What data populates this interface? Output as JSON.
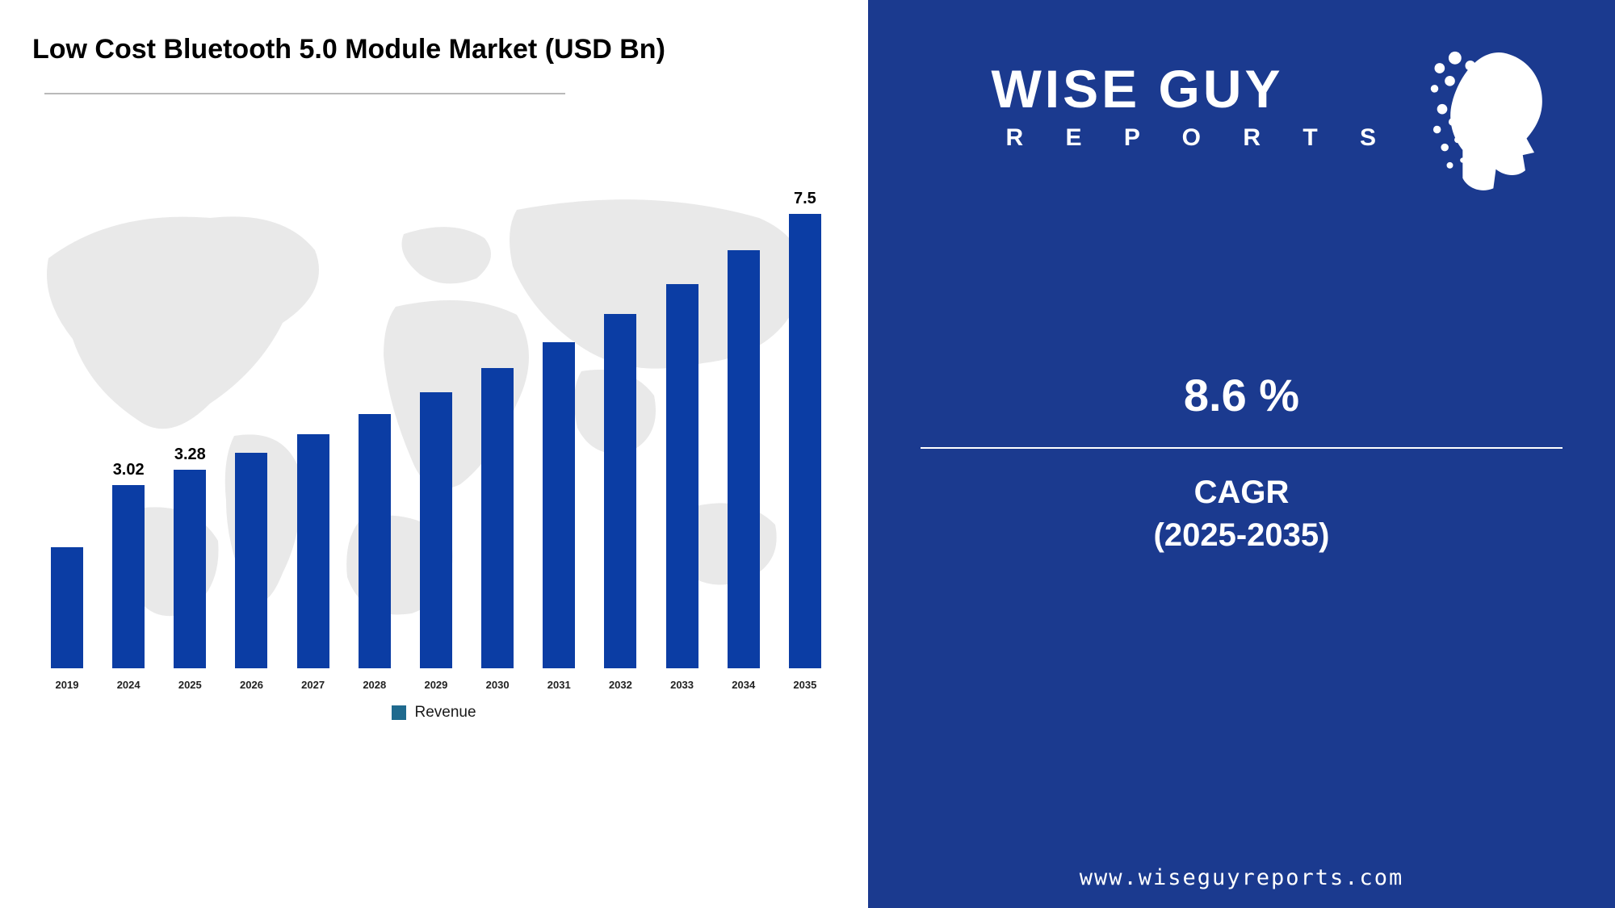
{
  "title": "Low Cost Bluetooth 5.0 Module Market (USD Bn)",
  "chart_data": {
    "type": "bar",
    "title": "Low Cost Bluetooth 5.0 Module Market (USD Bn)",
    "categories": [
      "2019",
      "2024",
      "2025",
      "2026",
      "2027",
      "2028",
      "2029",
      "2030",
      "2031",
      "2032",
      "2033",
      "2034",
      "2035"
    ],
    "values": [
      2.0,
      3.02,
      3.28,
      3.56,
      3.87,
      4.2,
      4.56,
      4.96,
      5.38,
      5.85,
      6.35,
      6.9,
      7.5
    ],
    "data_labels": [
      "",
      "3.02",
      "3.28",
      "",
      "",
      "",
      "",
      "",
      "",
      "",
      "",
      "",
      "7.5"
    ],
    "xlabel": "",
    "ylabel": "",
    "ylim": [
      0,
      8
    ],
    "grid": false,
    "legend_position": "bottom",
    "series_name": "Revenue"
  },
  "legend": {
    "label": "Revenue"
  },
  "colors": {
    "bar": "#0b3da4",
    "legend_swatch": "#1f6a8e",
    "sidebar_bg": "#1b3a8f",
    "watermark": "#e9e9e9"
  },
  "sidebar": {
    "logo_line1": "WISE GUY",
    "logo_line2": "R E P O R T S",
    "cagr_value": "8.6 %",
    "cagr_line1": "CAGR",
    "cagr_line2": "(2025-2035)",
    "website": "www.wiseguyreports.com"
  }
}
